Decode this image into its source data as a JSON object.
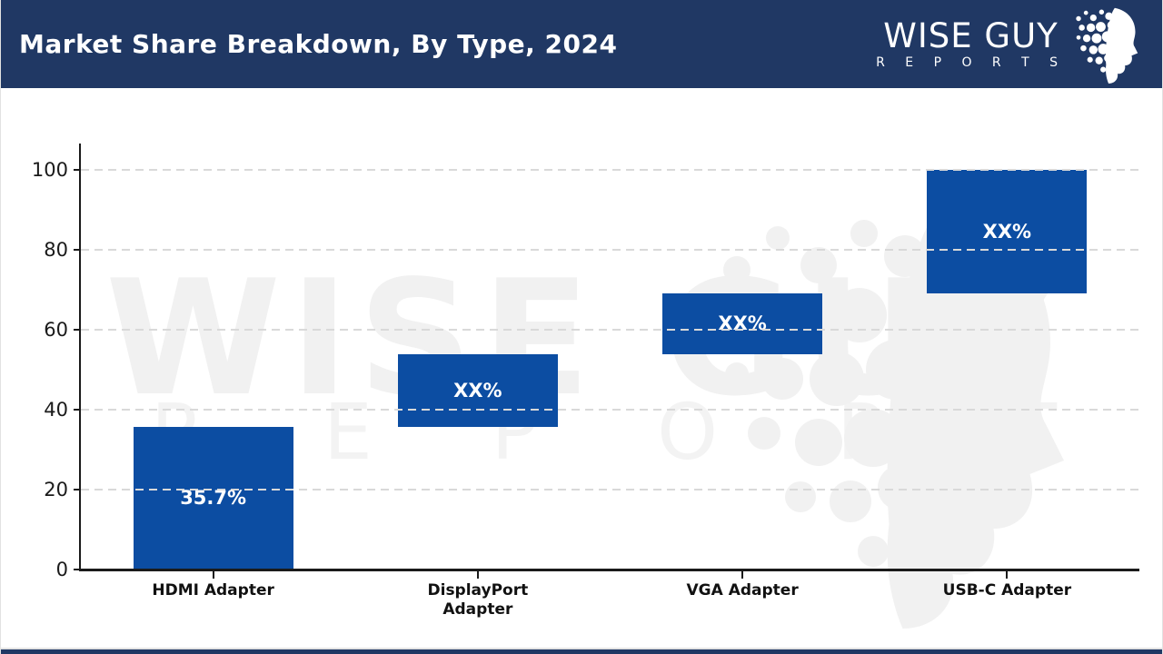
{
  "header": {
    "title": "Market Share Breakdown, By Type, 2024",
    "logo": {
      "name": "WISE GUY",
      "sub": "R E P O R T S"
    }
  },
  "watermark": {
    "line1": "WISE GUY",
    "line2": "R E P O R T S"
  },
  "colors": {
    "header_bg": "#203864",
    "footer_bg": "#203864",
    "bar": "#0c4da2",
    "bar_label": "#ffffff",
    "gridline": "#d9d9d9",
    "axis": "#1a1a1a",
    "watermark": "#f1f1f1"
  },
  "chart_data": {
    "type": "bar",
    "subtype": "waterfall",
    "title": "Market Share Breakdown, By Type, 2024",
    "xlabel": "",
    "ylabel": "",
    "ylim": [
      0,
      106
    ],
    "yticks": [
      0,
      20,
      40,
      60,
      80,
      100
    ],
    "grid": "horizontal-dashed",
    "legend": "none",
    "categories": [
      "HDMI Adapter",
      "DisplayPort\nAdapter",
      "VGA Adapter",
      "USB-C Adapter"
    ],
    "segments": [
      {
        "category": "HDMI Adapter",
        "start": 0,
        "end": 35.7,
        "value": 35.7,
        "label": "35.7%"
      },
      {
        "category": "DisplayPort Adapter",
        "start": 35.7,
        "end": 53.9,
        "value": 18.2,
        "label": "XX%"
      },
      {
        "category": "VGA Adapter",
        "start": 53.9,
        "end": 69.2,
        "value": 15.3,
        "label": "XX%"
      },
      {
        "category": "USB-C Adapter",
        "start": 69.2,
        "end": 100,
        "value": 30.8,
        "label": "XX%"
      }
    ]
  }
}
